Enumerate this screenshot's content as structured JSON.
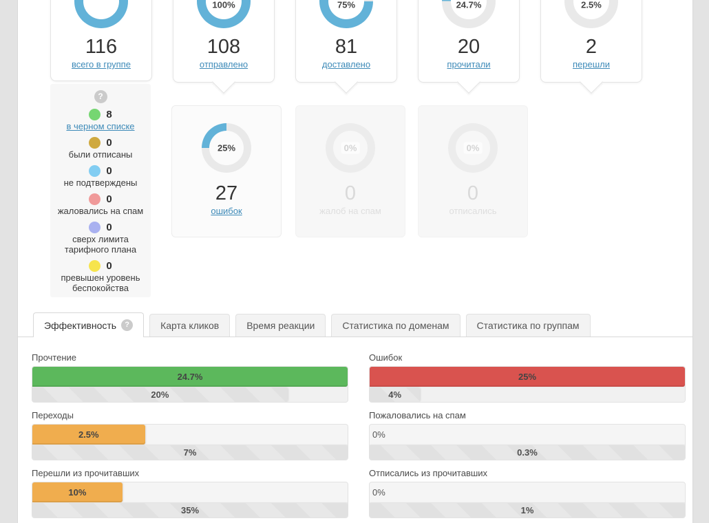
{
  "colors": {
    "accent_blue": "#62b2d8",
    "donut_track": "#e9e9e9",
    "donut_muted_track": "#ececec",
    "link": "#3d8ab8",
    "page_bg": "#e3e3e3"
  },
  "summary_cards": [
    {
      "value": "116",
      "label": "всего в группе",
      "percent": "",
      "fill": 100
    },
    {
      "value": "108",
      "label": "отправлено",
      "percent": "100%",
      "fill": 100
    },
    {
      "value": "81",
      "label": "доставлено",
      "percent": "75%",
      "fill": 75
    },
    {
      "value": "20",
      "label": "прочитали",
      "percent": "24.7%",
      "fill": 24.7
    },
    {
      "value": "2",
      "label": "перешли",
      "percent": "2.5%",
      "fill": 2.5
    }
  ],
  "legend": {
    "items": [
      {
        "count": "8",
        "label": "в черном списке",
        "color": "#76d672"
      },
      {
        "count": "0",
        "label": "были отписаны",
        "color": "#cfa93f"
      },
      {
        "count": "0",
        "label": "не подтверждены",
        "color": "#82cdf2"
      },
      {
        "count": "0",
        "label": "жаловались на спам",
        "color": "#f09a9a"
      },
      {
        "count": "0",
        "label": "сверх лимита тарифного плана",
        "color": "#a9b1f0"
      },
      {
        "count": "0",
        "label": "превышен уровень беспокойства",
        "color": "#f6e44d"
      }
    ]
  },
  "secondary_cards": [
    {
      "value": "27",
      "label": "ошибок",
      "percent": "25%",
      "fill": 25,
      "muted": false
    },
    {
      "value": "0",
      "label": "жалоб на спам",
      "percent": "0%",
      "fill": 0,
      "muted": true
    },
    {
      "value": "0",
      "label": "отписались",
      "percent": "0%",
      "fill": 0,
      "muted": true
    }
  ],
  "tabs": [
    {
      "label": "Эффективность",
      "active": true
    },
    {
      "label": "Карта кликов",
      "active": false
    },
    {
      "label": "Время реакции",
      "active": false
    },
    {
      "label": "Статистика по доменам",
      "active": false
    },
    {
      "label": "Статистика по группам",
      "active": false
    }
  ],
  "metrics": {
    "left": [
      {
        "label": "Прочтение",
        "value": 24.7,
        "value_label": "24.7%",
        "average": 20,
        "average_label": "20%",
        "color": "#5cb85c"
      },
      {
        "label": "Переходы",
        "value": 2.5,
        "value_label": "2.5%",
        "average": 7,
        "average_label": "7%",
        "color": "#f0ad4e"
      },
      {
        "label": "Перешли из прочитавших",
        "value": 10,
        "value_label": "10%",
        "average": 35,
        "average_label": "35%",
        "color": "#f0ad4e"
      }
    ],
    "right": [
      {
        "label": "Ошибок",
        "value": 25,
        "value_label": "25%",
        "average": 4,
        "average_label": "4%",
        "color": "#d9534f"
      },
      {
        "label": "Пожаловались на спам",
        "value": 0,
        "value_label": "0%",
        "average": 0.3,
        "average_label": "0.3%",
        "color": "#d9534f"
      },
      {
        "label": "Отписались из прочитавших",
        "value": 0,
        "value_label": "0%",
        "average": 1,
        "average_label": "1%",
        "color": "#d9534f"
      }
    ]
  }
}
